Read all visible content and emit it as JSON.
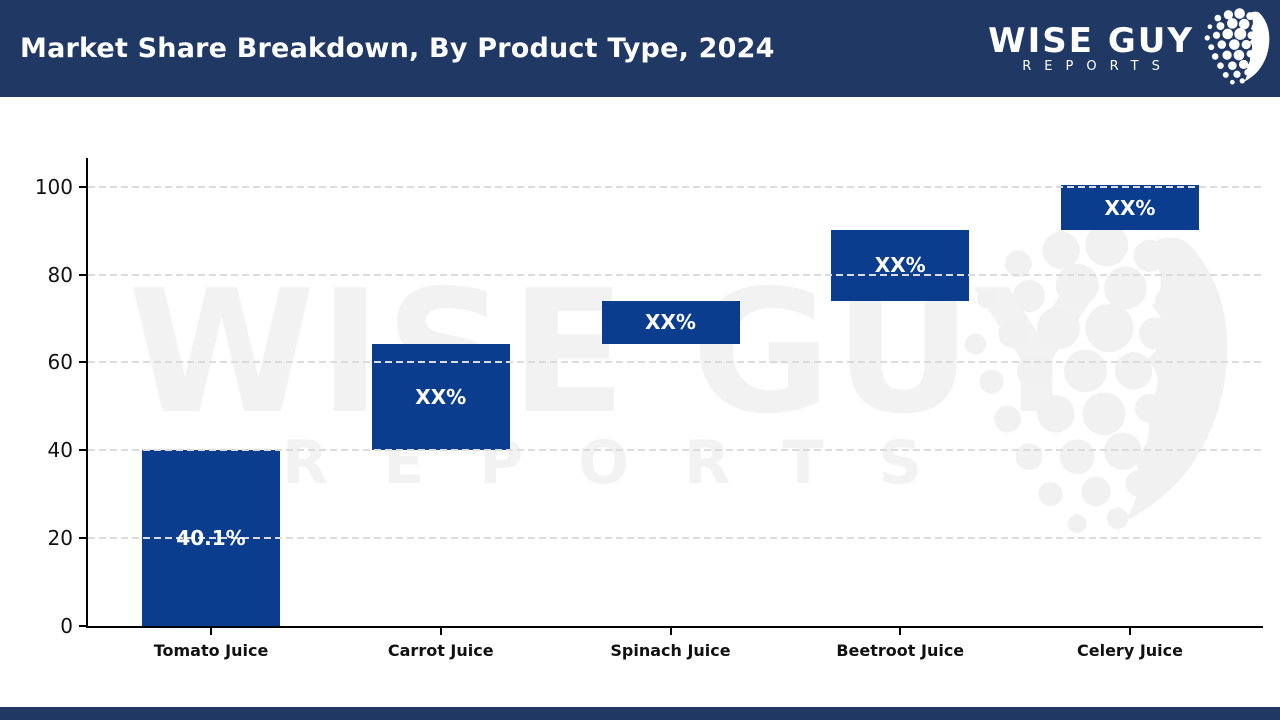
{
  "header": {
    "title": "Market Share Breakdown, By Product Type, 2024",
    "logo": {
      "line1": "WISE GUY",
      "line2": "REPORTS"
    }
  },
  "watermark": {
    "line1": "WISE GUY",
    "line2": "REPORTS"
  },
  "chart_data": {
    "type": "bar",
    "subtype": "waterfall",
    "title": "Market Share Breakdown, By Product Type, 2024",
    "categories": [
      "Tomato Juice",
      "Carrot Juice",
      "Spinach Juice",
      "Beetroot Juice",
      "Celery Juice"
    ],
    "segments": [
      {
        "category": "Tomato Juice",
        "start": 0,
        "end": 40.1,
        "label": "40.1%"
      },
      {
        "category": "Carrot Juice",
        "start": 40.1,
        "end": 64.2,
        "label": "XX%"
      },
      {
        "category": "Spinach Juice",
        "start": 64.2,
        "end": 74.1,
        "label": "XX%"
      },
      {
        "category": "Beetroot Juice",
        "start": 74.1,
        "end": 90.2,
        "label": "XX%"
      },
      {
        "category": "Celery Juice",
        "start": 90.2,
        "end": 100.3,
        "label": "XX%"
      }
    ],
    "yticks": [
      0,
      20,
      40,
      60,
      80,
      100
    ],
    "ylim": [
      0,
      106
    ],
    "xlabel": "",
    "ylabel": "",
    "grid": true,
    "legend": false
  },
  "colors": {
    "header_bg": "#1f3864",
    "footer_bg": "#1f3864",
    "bar_fill": "#0b3d8f",
    "bar_label_text": "#ffffff",
    "grid_line": "#dcdcdc",
    "axis_line": "#000000",
    "title_text": "#ffffff",
    "watermark_text": "#f2f2f2"
  }
}
